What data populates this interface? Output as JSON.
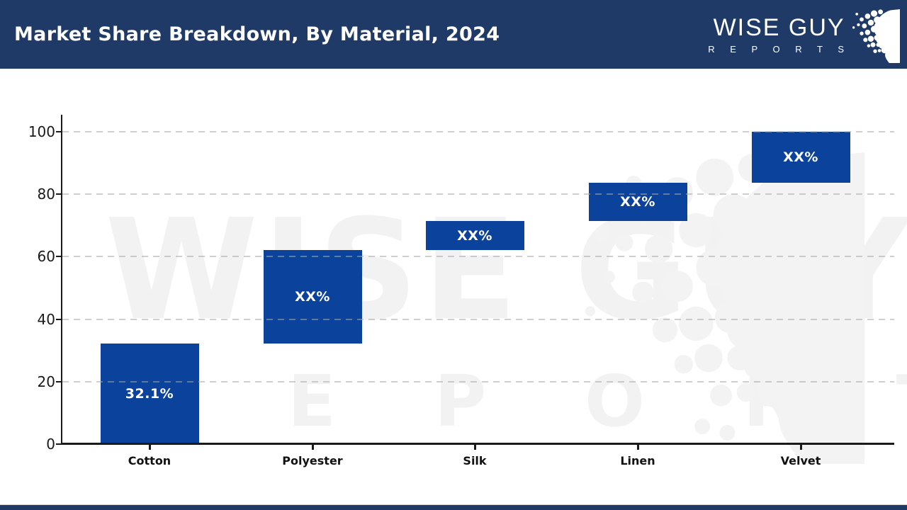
{
  "header": {
    "title": "Market Share Breakdown, By Material, 2024",
    "bg_color": "#1f3a66"
  },
  "logo": {
    "line1": "WISE GUY",
    "line2": "R E P O R T S"
  },
  "watermark": {
    "line1": "WISE GUY",
    "line2": "R E P O R T S"
  },
  "footer": {
    "bg_color": "#1f3a66"
  },
  "chart_data": {
    "type": "bar",
    "subtype": "waterfall",
    "title": "Market Share Breakdown, By Material, 2024",
    "categories": [
      "Cotton",
      "Polyester",
      "Silk",
      "Linen",
      "Velvet"
    ],
    "segments": [
      {
        "category": "Cotton",
        "start": 0,
        "end": 32.1,
        "label": "32.1%"
      },
      {
        "category": "Polyester",
        "start": 32.1,
        "end": 62.1,
        "label": "XX%"
      },
      {
        "category": "Silk",
        "start": 62.1,
        "end": 71.4,
        "label": "XX%"
      },
      {
        "category": "Linen",
        "start": 71.4,
        "end": 83.7,
        "label": "XX%"
      },
      {
        "category": "Velvet",
        "start": 83.7,
        "end": 100,
        "label": "XX%"
      }
    ],
    "increments": [
      32.1,
      30.0,
      9.3,
      12.3,
      16.3
    ],
    "xlabel": "",
    "ylabel": "",
    "ylim": [
      0,
      105
    ],
    "yticks": [
      0,
      20,
      40,
      60,
      80,
      100
    ],
    "grid": "horizontal-dashed",
    "legend": "none",
    "bar_color": "#0b429c",
    "bar_label_color": "#ffffff",
    "axis_color": "#1a1a1a"
  }
}
